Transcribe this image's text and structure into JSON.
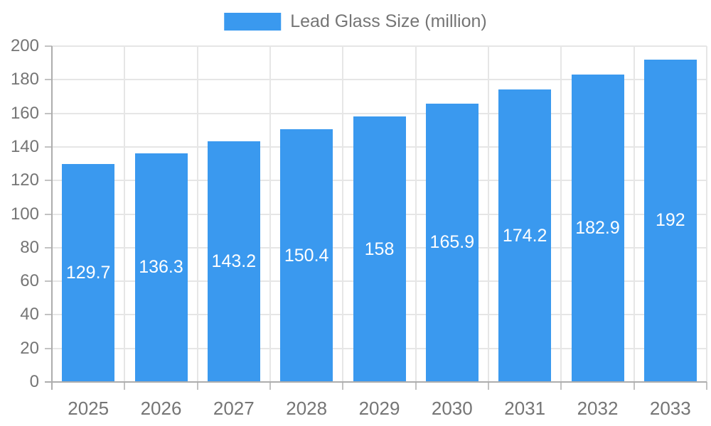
{
  "legend": {
    "label": "Lead Glass Size (million)"
  },
  "chart_data": {
    "type": "bar",
    "title": "",
    "categories": [
      "2025",
      "2026",
      "2027",
      "2028",
      "2029",
      "2030",
      "2031",
      "2032",
      "2033"
    ],
    "series": [
      {
        "name": "Lead Glass Size (million)",
        "values": [
          129.7,
          136.3,
          143.2,
          150.4,
          158,
          165.9,
          174.2,
          182.9,
          192
        ]
      }
    ],
    "value_labels": [
      "129.7",
      "136.3",
      "143.2",
      "150.4",
      "158",
      "165.9",
      "174.2",
      "182.9",
      "192"
    ],
    "xlabel": "",
    "ylabel": "",
    "ylim": [
      0,
      200
    ],
    "ytick_step": 20,
    "ytick_labels": [
      "0",
      "20",
      "40",
      "60",
      "80",
      "100",
      "120",
      "140",
      "160",
      "180",
      "200"
    ],
    "grid": true,
    "legend_position": "top-center",
    "value_label_position": "inside-center",
    "colors": {
      "bar": "#3a99ef",
      "axis_text": "#757575",
      "value_text": "#ffffff",
      "gridline": "#e6e6e6",
      "axis_line": "#adadad",
      "tick_mark": "#c2c2c2"
    }
  }
}
